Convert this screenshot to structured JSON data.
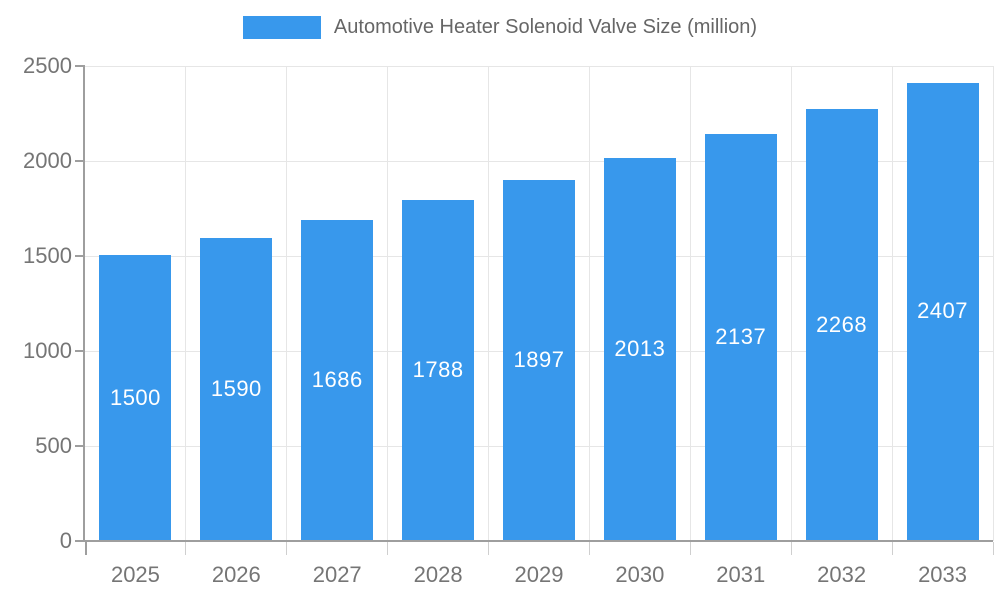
{
  "chart_data": {
    "type": "bar",
    "title": "Automotive Heater Solenoid Valve Size (million)",
    "legend_entries": [
      "Automotive Heater Solenoid Valve Size (million)"
    ],
    "legend_position": "top",
    "categories": [
      "2025",
      "2026",
      "2027",
      "2028",
      "2029",
      "2030",
      "2031",
      "2032",
      "2033"
    ],
    "series": [
      {
        "name": "Automotive Heater Solenoid Valve Size (million)",
        "values": [
          1500,
          1590,
          1686,
          1788,
          1897,
          2013,
          2137,
          2268,
          2407
        ]
      }
    ],
    "bar_labels": [
      "1500",
      "1590",
      "1686",
      "1788",
      "1897",
      "2013",
      "2137",
      "2268",
      "2407"
    ],
    "xlabel": "",
    "ylabel": "",
    "ylim": [
      0,
      2500
    ],
    "y_ticks": [
      0,
      500,
      1000,
      1500,
      2000,
      2500
    ],
    "grid": true,
    "colors": {
      "bar": "#3898ec",
      "bar_label": "#ffffff",
      "grid_line": "#e6e6e6",
      "axis_line": "#9e9e9e",
      "x_tick_mark": "#cfcfcf",
      "tick_label": "#757575",
      "legend_text": "#666666",
      "background": "#ffffff"
    }
  }
}
